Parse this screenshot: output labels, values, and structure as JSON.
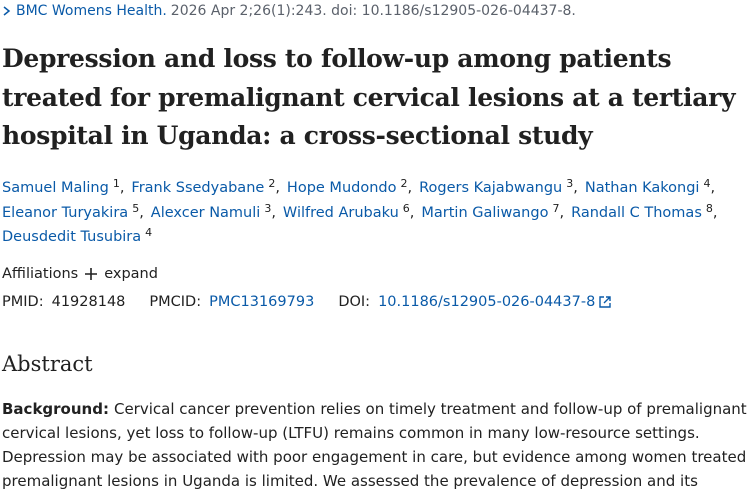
{
  "citation": {
    "journal": "BMC Womens Health.",
    "details": "2026 Apr 2;26(1):243. doi: 10.1186/s12905-026-04437-8."
  },
  "title_lines": [
    "Depression and loss to follow-up among patients",
    "treated for premalignant cervical lesions at a tertiary",
    "hospital in Uganda: a cross-sectional study"
  ],
  "author_separator": ",",
  "author_lines": [
    [
      {
        "name": "Samuel Maling",
        "aff": "1"
      },
      {
        "name": "Frank Ssedyabane",
        "aff": "2"
      },
      {
        "name": "Hope Mudondo",
        "aff": "2"
      },
      {
        "name": "Rogers Kajabwangu",
        "aff": "3"
      },
      {
        "name": "Nathan Kakongi",
        "aff": "4"
      }
    ],
    [
      {
        "name": "Eleanor Turyakira",
        "aff": "5"
      },
      {
        "name": "Alexcer Namuli",
        "aff": "3"
      },
      {
        "name": "Wilfred Arubaku",
        "aff": "6"
      },
      {
        "name": "Martin Galiwango",
        "aff": "7"
      },
      {
        "name": "Randall C Thomas",
        "aff": "8"
      }
    ],
    [
      {
        "name": "Deusdedit Tusubira",
        "aff": "4"
      }
    ]
  ],
  "affiliations": {
    "label": "Affiliations",
    "toggle": "expand"
  },
  "identifiers": {
    "pmid_label": "PMID:",
    "pmid": "41928148",
    "pmcid_label": "PMCID:",
    "pmcid": "PMC13169793",
    "doi_label": "DOI:",
    "doi": "10.1186/s12905-026-04437-8"
  },
  "abstract": {
    "heading": "Abstract",
    "label": "Background:",
    "lines": [
      "Cervical cancer prevention relies on timely treatment and follow-up of premalignant",
      "cervical lesions, yet loss to follow-up (LTFU) remains common in many low-resource settings.",
      "Depression may be associated with poor engagement in care, but evidence among women treated for",
      "premalignant lesions in Uganda is limited. We assessed the prevalence of depression and its"
    ]
  }
}
